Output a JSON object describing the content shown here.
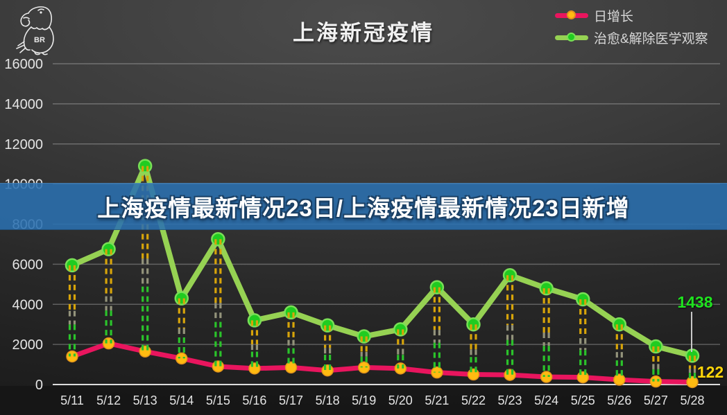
{
  "header": {
    "title": "上海新冠疫情",
    "logo_text": "BR",
    "legend": [
      {
        "label": "日增长",
        "line_color": "#e9155e",
        "marker_color": "#ffbb11"
      },
      {
        "label": "治愈&解除医学观察",
        "line_color": "#96d253",
        "marker_color": "#20cc20"
      }
    ]
  },
  "banner": {
    "text": "上海疫情最新情况23日/上海疫情最新情况23日新增",
    "bg_color": "#2a70b1"
  },
  "chart_data": {
    "type": "line",
    "title": "上海新冠疫情",
    "categories": [
      "5/11",
      "5/12",
      "5/13",
      "5/14",
      "5/15",
      "5/16",
      "5/17",
      "5/18",
      "5/19",
      "5/20",
      "5/21",
      "5/22",
      "5/23",
      "5/24",
      "5/25",
      "5/26",
      "5/27",
      "5/28"
    ],
    "series": [
      {
        "name": "日增长",
        "color": "#e9155e",
        "marker": "#ffbb11",
        "ring": "#e2931c",
        "values": [
          1400,
          2050,
          1650,
          1300,
          900,
          800,
          850,
          700,
          850,
          800,
          600,
          500,
          480,
          380,
          360,
          240,
          150,
          122
        ]
      },
      {
        "name": "治愈&解除医学观察",
        "color": "#96d253",
        "marker": "#20cc20",
        "ring": "#7adf57",
        "values": [
          5950,
          6750,
          10900,
          4300,
          7250,
          3200,
          3600,
          2950,
          2400,
          2750,
          4850,
          3000,
          5450,
          4800,
          4250,
          3000,
          1900,
          1438
        ]
      }
    ],
    "ylim": [
      0,
      16000
    ],
    "yticks": [
      0,
      2000,
      4000,
      6000,
      8000,
      10000,
      12000,
      14000,
      16000
    ],
    "xlabel": "",
    "ylabel": "",
    "grid": true,
    "legend_position": "top-right",
    "dropline_colors": [
      "#d7a40a",
      "#93937b",
      "#2bc32b"
    ],
    "annotations": [
      {
        "series": "治愈&解除医学观察",
        "x": "5/28",
        "text": "1438",
        "color": "#1fe31f"
      },
      {
        "series": "日增长",
        "x": "5/28",
        "text": "122",
        "color": "#ffd60a"
      }
    ]
  }
}
